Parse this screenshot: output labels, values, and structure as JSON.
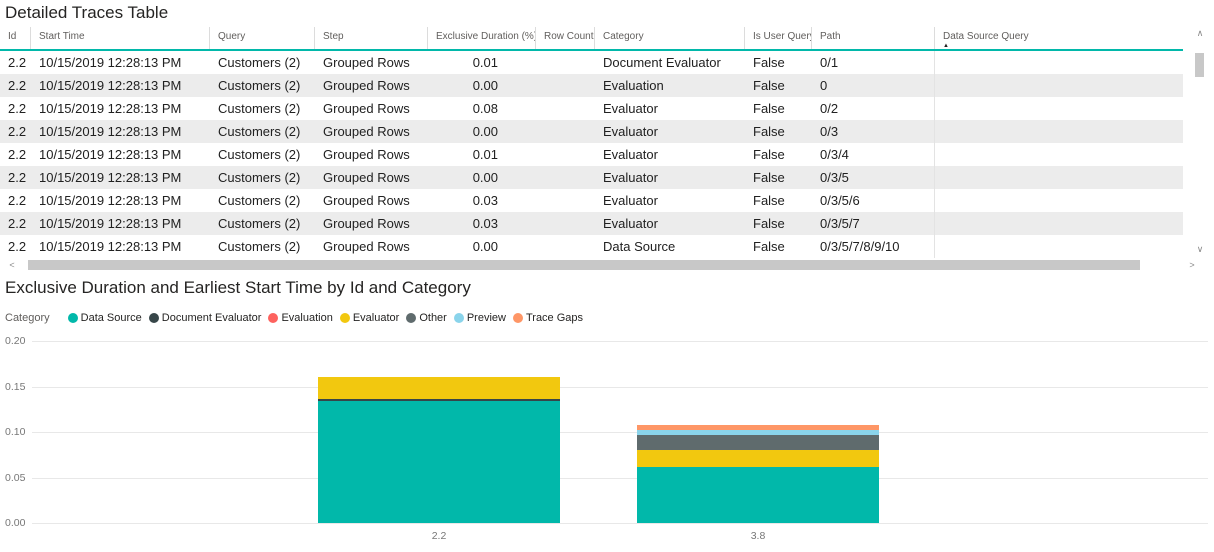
{
  "colors": {
    "accent_teal": "#01B8AA",
    "row_alt_background": "#ececec",
    "gridline": "#e8e8e8",
    "axis_text": "#777777",
    "header_text": "#605E5C",
    "body_text": "#212121",
    "scrollbar_thumb": "#c8c8c8"
  },
  "icons": {
    "sort_ascending": "▲",
    "scroll_up": "∧",
    "scroll_down": "∨",
    "scroll_left": "<",
    "scroll_right": ">",
    "legend_dot": "●"
  },
  "table": {
    "title": "Detailed Traces Table",
    "columns": [
      {
        "label": "Id"
      },
      {
        "label": "Start Time"
      },
      {
        "label": "Query"
      },
      {
        "label": "Step"
      },
      {
        "label": "Exclusive Duration (%)"
      },
      {
        "label": "Row Count"
      },
      {
        "label": "Category"
      },
      {
        "label": "Is User Query"
      },
      {
        "label": "Path"
      },
      {
        "label": "Data Source Query",
        "sort": "ascending"
      }
    ],
    "rows": [
      [
        "2.2",
        "10/15/2019 12:28:13 PM",
        "Customers (2)",
        "Grouped Rows",
        "0.01",
        "",
        "Document Evaluator",
        "False",
        "0/1",
        ""
      ],
      [
        "2.2",
        "10/15/2019 12:28:13 PM",
        "Customers (2)",
        "Grouped Rows",
        "0.00",
        "",
        "Evaluation",
        "False",
        "0",
        ""
      ],
      [
        "2.2",
        "10/15/2019 12:28:13 PM",
        "Customers (2)",
        "Grouped Rows",
        "0.08",
        "",
        "Evaluator",
        "False",
        "0/2",
        ""
      ],
      [
        "2.2",
        "10/15/2019 12:28:13 PM",
        "Customers (2)",
        "Grouped Rows",
        "0.00",
        "",
        "Evaluator",
        "False",
        "0/3",
        ""
      ],
      [
        "2.2",
        "10/15/2019 12:28:13 PM",
        "Customers (2)",
        "Grouped Rows",
        "0.01",
        "",
        "Evaluator",
        "False",
        "0/3/4",
        ""
      ],
      [
        "2.2",
        "10/15/2019 12:28:13 PM",
        "Customers (2)",
        "Grouped Rows",
        "0.00",
        "",
        "Evaluator",
        "False",
        "0/3/5",
        ""
      ],
      [
        "2.2",
        "10/15/2019 12:28:13 PM",
        "Customers (2)",
        "Grouped Rows",
        "0.03",
        "",
        "Evaluator",
        "False",
        "0/3/5/6",
        ""
      ],
      [
        "2.2",
        "10/15/2019 12:28:13 PM",
        "Customers (2)",
        "Grouped Rows",
        "0.03",
        "",
        "Evaluator",
        "False",
        "0/3/5/7",
        ""
      ],
      [
        "2.2",
        "10/15/2019 12:28:13 PM",
        "Customers (2)",
        "Grouped Rows",
        "0.00",
        "",
        "Data Source",
        "False",
        "0/3/5/7/8/9/10",
        ""
      ]
    ]
  },
  "chart": {
    "title": "Exclusive Duration and Earliest Start Time by Id and Category",
    "legend_title": "Category"
  },
  "chart_data": {
    "type": "bar",
    "stacked": true,
    "title": "Exclusive Duration and Earliest Start Time by Id and Category",
    "xlabel": "Id",
    "ylabel": "Exclusive Duration (%)",
    "ylim": [
      0,
      0.2
    ],
    "yticks": [
      "0.20",
      "0.15",
      "0.10",
      "0.05",
      "0.00"
    ],
    "grid": true,
    "legend_position": "top",
    "categories": [
      "2.2",
      "3.8"
    ],
    "series": [
      {
        "name": "Data Source",
        "color": "#01B8AA",
        "values": [
          0.134,
          0.062
        ]
      },
      {
        "name": "Document Evaluator",
        "color": "#374649",
        "values": [
          0.002,
          0
        ]
      },
      {
        "name": "Evaluation",
        "color": "#FD625E",
        "values": [
          0,
          0
        ]
      },
      {
        "name": "Evaluator",
        "color": "#F2C80F",
        "values": [
          0.024,
          0.019
        ]
      },
      {
        "name": "Other",
        "color": "#5F6B6D",
        "values": [
          0,
          0.016
        ]
      },
      {
        "name": "Preview",
        "color": "#8AD4EB",
        "values": [
          0,
          0.005
        ]
      },
      {
        "name": "Trace Gaps",
        "color": "#FE9666",
        "values": [
          0,
          0.005
        ]
      }
    ]
  }
}
